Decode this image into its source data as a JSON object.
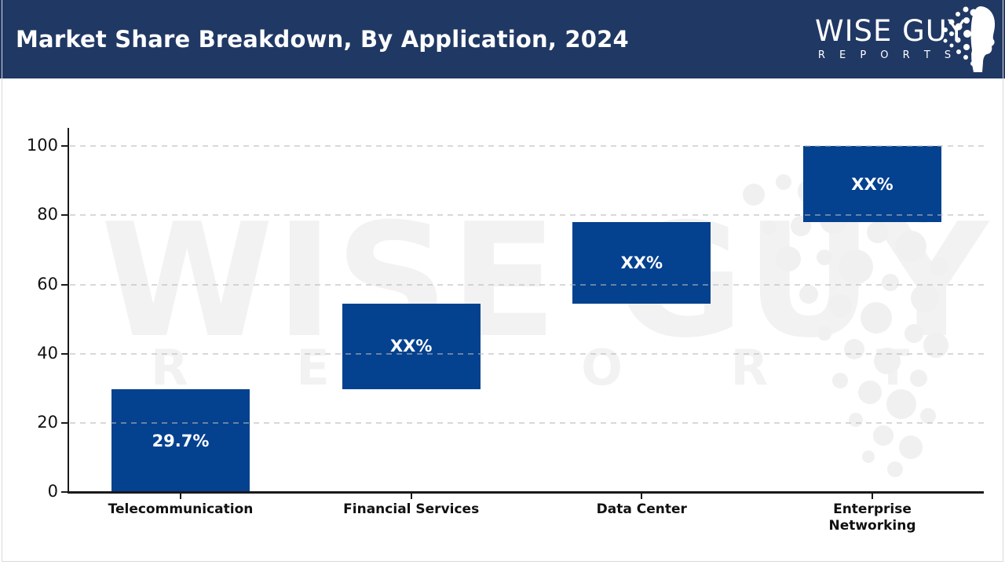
{
  "header": {
    "title": "Market Share Breakdown, By Application, 2024",
    "logo": {
      "name": "WISE GUY",
      "sub": "R E P O R T S"
    }
  },
  "watermark": {
    "line1": "WISE GUY",
    "line2": "R E P O R T S"
  },
  "chart_data": {
    "type": "bar",
    "subtype": "waterfall",
    "title": "Market Share Breakdown, By Application, 2024",
    "categories": [
      "Telecommunication",
      "Financial Services",
      "Data Center",
      "Enterprise\nNetworking"
    ],
    "segments": [
      {
        "category": "Telecommunication",
        "start": 0,
        "end": 29.7,
        "label": "29.7%"
      },
      {
        "category": "Financial Services",
        "start": 29.7,
        "end": 54.5,
        "label": "XX%"
      },
      {
        "category": "Data Center",
        "start": 54.5,
        "end": 78,
        "label": "XX%"
      },
      {
        "category": "Enterprise Networking",
        "start": 78,
        "end": 100,
        "label": "XX%"
      }
    ],
    "yticks": [
      0,
      20,
      40,
      60,
      80,
      100
    ],
    "ylim": [
      0,
      105.3
    ],
    "xlabel": "",
    "ylabel": "",
    "grid": "dashed-horizontal",
    "legend": "none",
    "colors": {
      "bar": "#04418f",
      "bar_label": "#ffffff",
      "axis": "#1a1a1a",
      "header_bg": "#203864",
      "watermark": "#f2f2f2"
    }
  }
}
